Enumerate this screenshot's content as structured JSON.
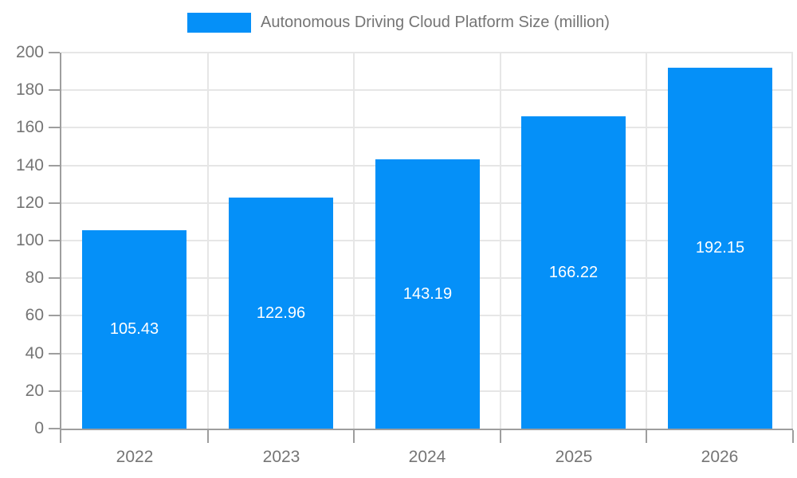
{
  "legend": {
    "label": "Autonomous Driving Cloud Platform Size (million)"
  },
  "chart_data": {
    "type": "bar",
    "title": "Autonomous Driving Cloud Platform Size (million)",
    "categories": [
      "2022",
      "2023",
      "2024",
      "2025",
      "2026"
    ],
    "values": [
      105.43,
      122.96,
      143.19,
      166.22,
      192.15
    ],
    "value_labels": [
      "105.43",
      "122.96",
      "143.19",
      "166.22",
      "192.15"
    ],
    "xlabel": "",
    "ylabel": "",
    "ylim": [
      0,
      200
    ],
    "ytick_step": 20,
    "ytick_labels": [
      "0",
      "20",
      "40",
      "60",
      "80",
      "100",
      "120",
      "140",
      "160",
      "180",
      "200"
    ],
    "grid": "on",
    "legend_position": "top",
    "colors": {
      "bar": "#0590F8",
      "value_label": "#FFFFFF",
      "axis_text": "#757575",
      "axis_line": "#9E9E9E",
      "gridline": "#E6E6E6",
      "background": "#FFFFFF"
    }
  }
}
